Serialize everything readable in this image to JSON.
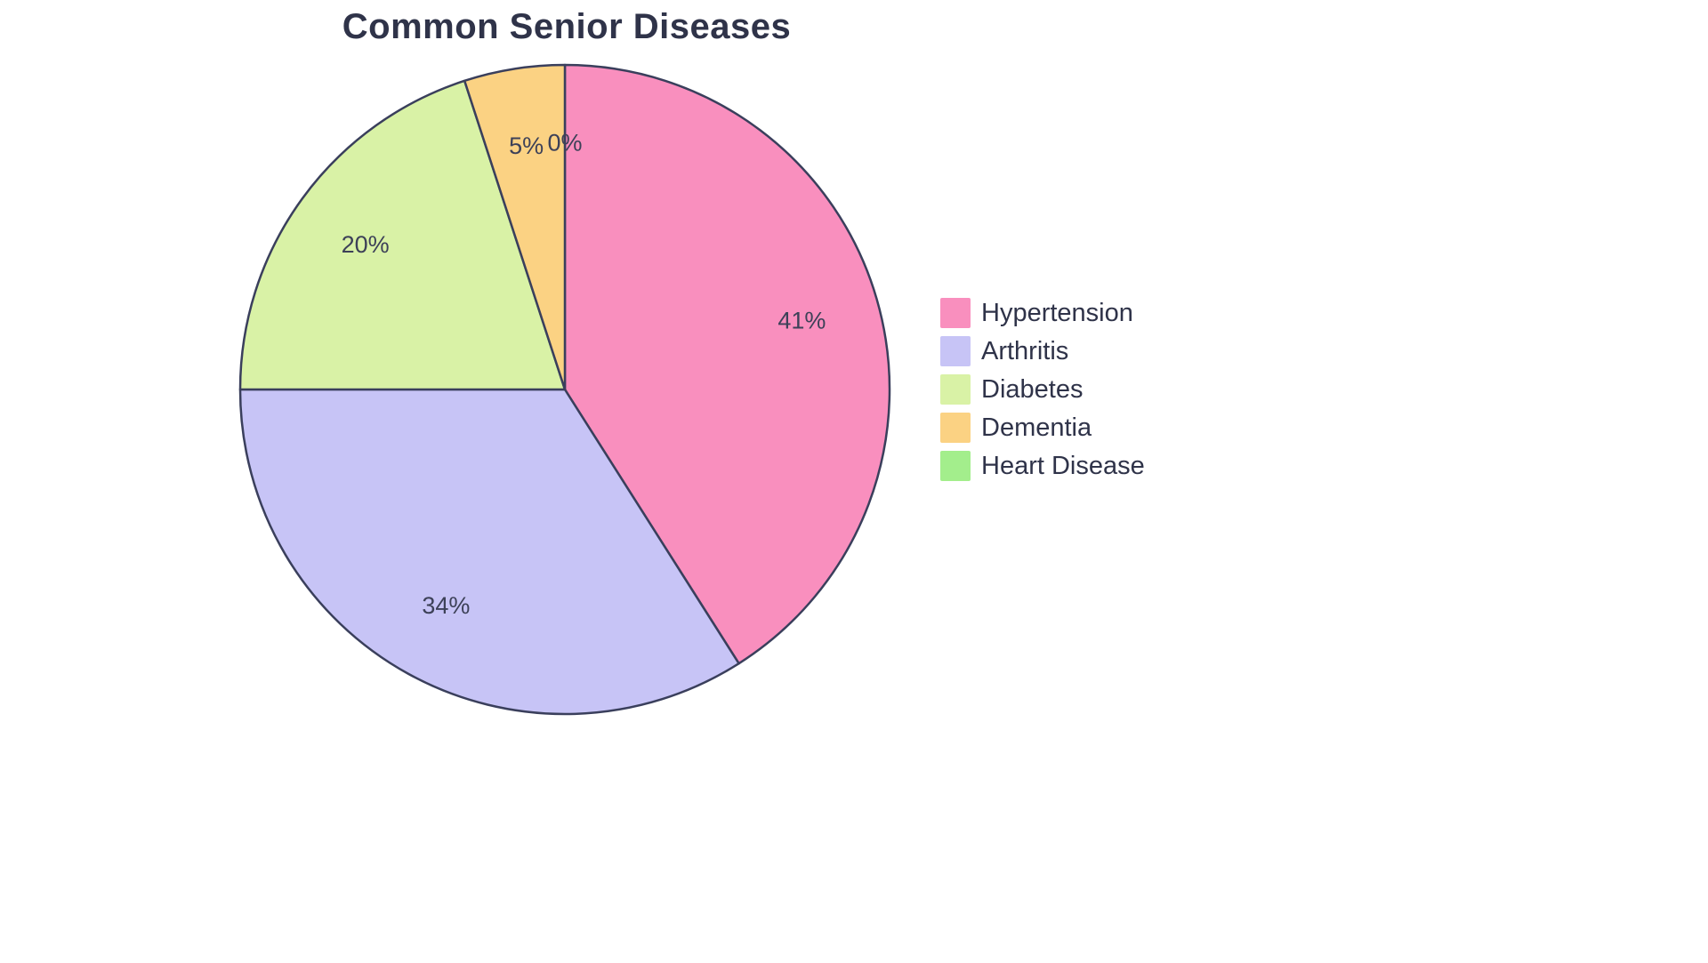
{
  "title": "Common Senior Diseases",
  "chart_data": {
    "type": "pie",
    "title": "Common Senior Diseases",
    "categories": [
      "Hypertension",
      "Arthritis",
      "Diabetes",
      "Dementia",
      "Heart Disease"
    ],
    "values": [
      41,
      34,
      20,
      5,
      0
    ],
    "labels": [
      "41%",
      "34%",
      "20%",
      "5%",
      "0%"
    ],
    "colors": [
      "#F98FBE",
      "#C7C4F6",
      "#D9F2A6",
      "#FBD283",
      "#A3EE8C"
    ],
    "stroke_color": "#3A3F5C",
    "start_angle_deg": 0,
    "direction": "clockwise",
    "legend_position": "right",
    "grid": false
  }
}
